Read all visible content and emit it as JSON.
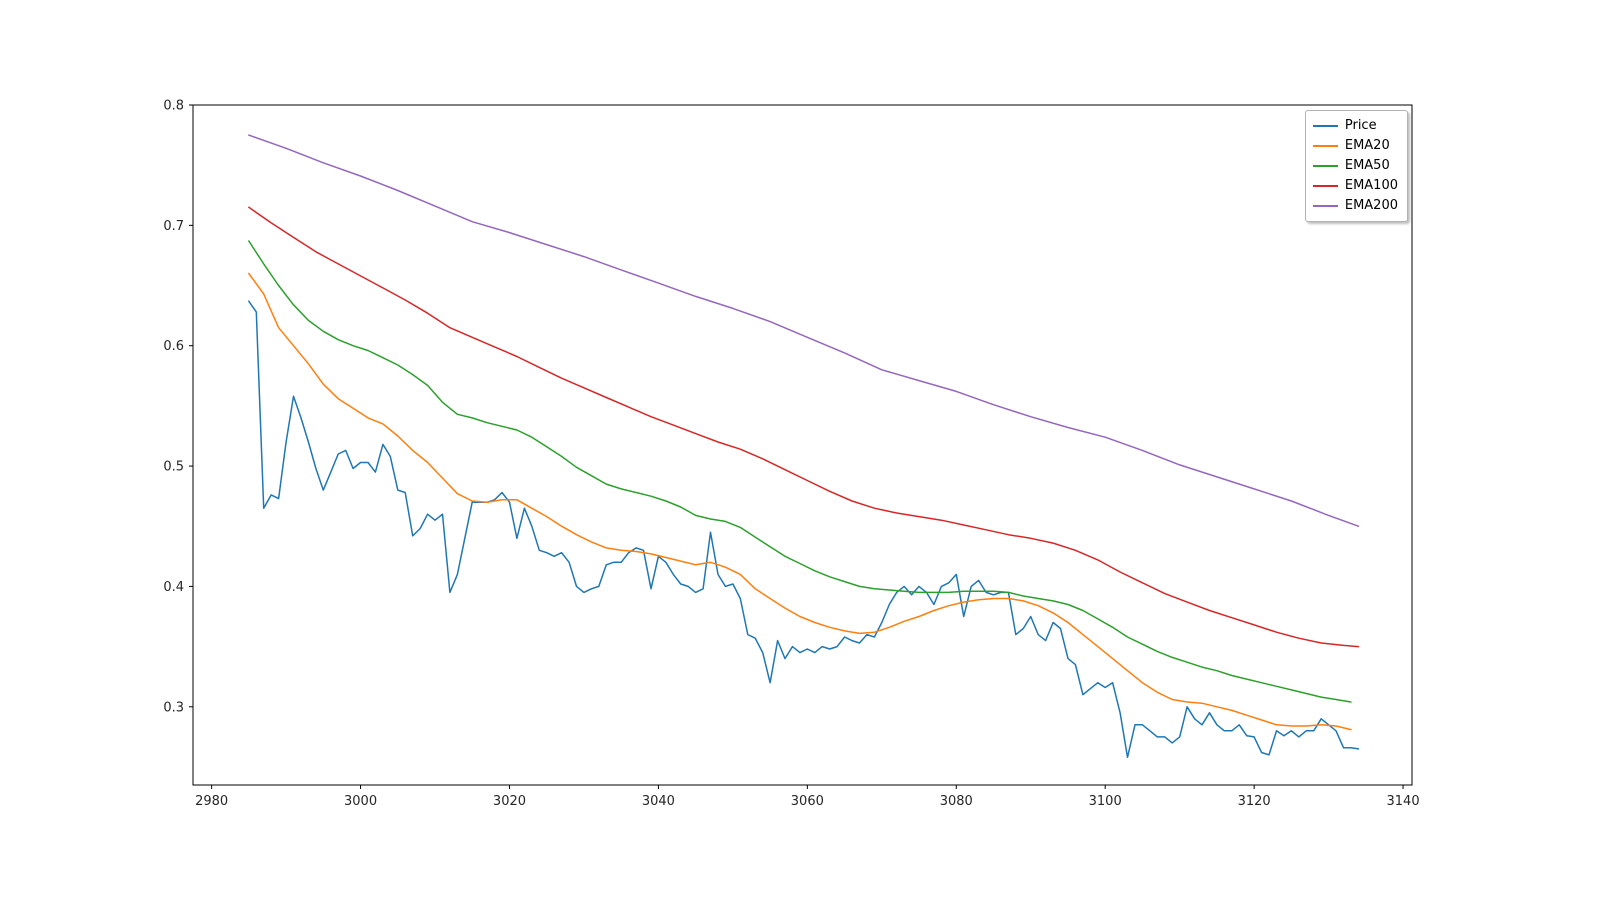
{
  "chart_data": {
    "type": "line",
    "title": "",
    "xlabel": "",
    "ylabel": "",
    "grid": false,
    "legend_position": "upper right",
    "xlim": [
      2977.5,
      3141.2
    ],
    "ylim": [
      0.235,
      0.8
    ],
    "x_ticks": [
      2980,
      3000,
      3020,
      3040,
      3060,
      3080,
      3100,
      3120,
      3140
    ],
    "y_ticks": [
      0.3,
      0.4,
      0.5,
      0.6,
      0.7,
      0.8
    ],
    "series": [
      {
        "name": "Price",
        "color": "#1f77b4",
        "x_start": 2985,
        "x_step": 1,
        "y": [
          0.637,
          0.628,
          0.465,
          0.476,
          0.473,
          0.52,
          0.558,
          0.54,
          0.52,
          0.498,
          0.48,
          0.495,
          0.51,
          0.513,
          0.498,
          0.503,
          0.503,
          0.495,
          0.518,
          0.508,
          0.48,
          0.478,
          0.442,
          0.448,
          0.46,
          0.455,
          0.46,
          0.395,
          0.41,
          0.44,
          0.47,
          0.47,
          0.47,
          0.472,
          0.478,
          0.47,
          0.44,
          0.465,
          0.45,
          0.43,
          0.428,
          0.425,
          0.428,
          0.42,
          0.4,
          0.395,
          0.398,
          0.4,
          0.418,
          0.42,
          0.42,
          0.428,
          0.432,
          0.43,
          0.398,
          0.425,
          0.42,
          0.41,
          0.402,
          0.4,
          0.395,
          0.398,
          0.445,
          0.41,
          0.4,
          0.402,
          0.39,
          0.36,
          0.357,
          0.345,
          0.32,
          0.355,
          0.34,
          0.35,
          0.345,
          0.348,
          0.345,
          0.35,
          0.348,
          0.35,
          0.358,
          0.355,
          0.353,
          0.36,
          0.358,
          0.37,
          0.385,
          0.395,
          0.4,
          0.393,
          0.4,
          0.395,
          0.385,
          0.4,
          0.403,
          0.41,
          0.375,
          0.4,
          0.405,
          0.395,
          0.393,
          0.395,
          0.395,
          0.36,
          0.365,
          0.375,
          0.36,
          0.355,
          0.37,
          0.365,
          0.34,
          0.335,
          0.31,
          0.315,
          0.32,
          0.316,
          0.32,
          0.295,
          0.258,
          0.285,
          0.285,
          0.28,
          0.275,
          0.275,
          0.27,
          0.275,
          0.3,
          0.29,
          0.285,
          0.295,
          0.285,
          0.28,
          0.28,
          0.285,
          0.276,
          0.275,
          0.262,
          0.26,
          0.28,
          0.276,
          0.28,
          0.275,
          0.28,
          0.28,
          0.29,
          0.285,
          0.28,
          0.266,
          0.266,
          0.265
        ]
      },
      {
        "name": "EMA20",
        "color": "#ff7f0e",
        "x_start": 2985,
        "x_step": 2,
        "y": [
          0.66,
          0.643,
          0.615,
          0.6,
          0.585,
          0.568,
          0.556,
          0.548,
          0.54,
          0.535,
          0.525,
          0.513,
          0.503,
          0.49,
          0.477,
          0.471,
          0.47,
          0.472,
          0.472,
          0.465,
          0.458,
          0.45,
          0.443,
          0.437,
          0.432,
          0.43,
          0.429,
          0.427,
          0.424,
          0.421,
          0.418,
          0.42,
          0.416,
          0.41,
          0.398,
          0.39,
          0.382,
          0.375,
          0.37,
          0.366,
          0.363,
          0.361,
          0.362,
          0.366,
          0.371,
          0.375,
          0.38,
          0.384,
          0.387,
          0.389,
          0.39,
          0.39,
          0.388,
          0.384,
          0.378,
          0.37,
          0.36,
          0.35,
          0.34,
          0.33,
          0.32,
          0.312,
          0.306,
          0.304,
          0.303,
          0.3,
          0.297,
          0.293,
          0.289,
          0.285,
          0.284,
          0.284,
          0.285,
          0.284,
          0.281
        ]
      },
      {
        "name": "EMA50",
        "color": "#2ca02c",
        "x_start": 2985,
        "x_step": 2,
        "y": [
          0.687,
          0.668,
          0.65,
          0.634,
          0.621,
          0.612,
          0.605,
          0.6,
          0.596,
          0.59,
          0.584,
          0.576,
          0.567,
          0.553,
          0.543,
          0.54,
          0.536,
          0.533,
          0.53,
          0.524,
          0.516,
          0.508,
          0.499,
          0.492,
          0.485,
          0.481,
          0.478,
          0.475,
          0.471,
          0.466,
          0.459,
          0.456,
          0.454,
          0.449,
          0.441,
          0.433,
          0.425,
          0.419,
          0.413,
          0.408,
          0.404,
          0.4,
          0.398,
          0.397,
          0.396,
          0.395,
          0.395,
          0.395,
          0.396,
          0.396,
          0.396,
          0.395,
          0.392,
          0.39,
          0.388,
          0.385,
          0.38,
          0.373,
          0.366,
          0.358,
          0.352,
          0.346,
          0.341,
          0.337,
          0.333,
          0.33,
          0.326,
          0.323,
          0.32,
          0.317,
          0.314,
          0.311,
          0.308,
          0.306,
          0.304
        ]
      },
      {
        "name": "EMA100",
        "color": "#d62728",
        "x": [
          2985,
          2988,
          2991,
          2994,
          2997,
          3000,
          3003,
          3006,
          3009,
          3012,
          3015,
          3018,
          3021,
          3024,
          3027,
          3030,
          3033,
          3036,
          3039,
          3042,
          3045,
          3048,
          3051,
          3054,
          3057,
          3060,
          3063,
          3066,
          3069,
          3072,
          3075,
          3078,
          3081,
          3084,
          3087,
          3090,
          3093,
          3096,
          3099,
          3102,
          3105,
          3108,
          3111,
          3114,
          3117,
          3120,
          3123,
          3126,
          3129,
          3132,
          3134
        ],
        "y": [
          0.715,
          0.702,
          0.69,
          0.678,
          0.668,
          0.658,
          0.648,
          0.638,
          0.627,
          0.615,
          0.607,
          0.599,
          0.591,
          0.582,
          0.573,
          0.565,
          0.557,
          0.549,
          0.541,
          0.534,
          0.527,
          0.52,
          0.514,
          0.506,
          0.497,
          0.488,
          0.479,
          0.471,
          0.465,
          0.461,
          0.458,
          0.455,
          0.451,
          0.447,
          0.443,
          0.44,
          0.436,
          0.43,
          0.422,
          0.412,
          0.403,
          0.394,
          0.387,
          0.38,
          0.374,
          0.368,
          0.362,
          0.357,
          0.353,
          0.351,
          0.35
        ]
      },
      {
        "name": "EMA200",
        "color": "#9467bd",
        "x": [
          2985,
          2990,
          2995,
          3000,
          3005,
          3010,
          3015,
          3020,
          3025,
          3030,
          3035,
          3040,
          3045,
          3050,
          3055,
          3060,
          3065,
          3070,
          3075,
          3080,
          3085,
          3090,
          3095,
          3100,
          3105,
          3110,
          3115,
          3120,
          3125,
          3130,
          3134
        ],
        "y": [
          0.775,
          0.764,
          0.752,
          0.741,
          0.729,
          0.716,
          0.703,
          0.694,
          0.684,
          0.674,
          0.663,
          0.652,
          0.641,
          0.631,
          0.62,
          0.607,
          0.594,
          0.58,
          0.571,
          0.562,
          0.551,
          0.541,
          0.532,
          0.524,
          0.513,
          0.501,
          0.491,
          0.481,
          0.471,
          0.459,
          0.45
        ]
      }
    ]
  }
}
